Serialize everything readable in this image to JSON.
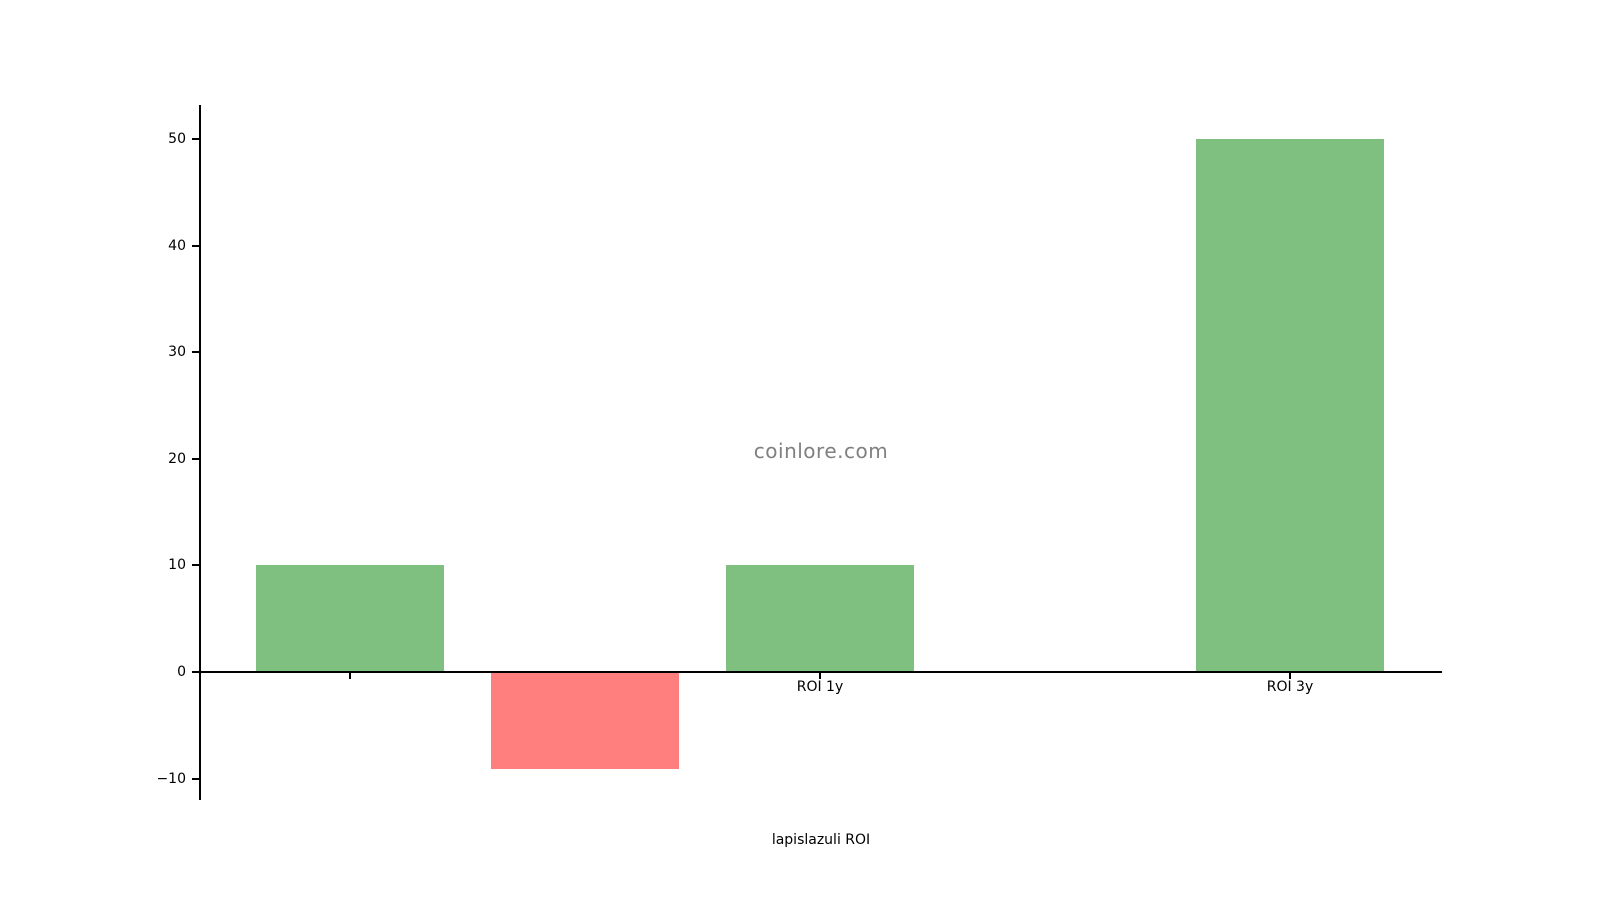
{
  "page": {
    "background_color": "#ffffff"
  },
  "chart_data": {
    "type": "bar",
    "title": "",
    "xlabel": "lapislazuli ROI",
    "ylabel": "",
    "watermark": "coinlore.com",
    "y_ticks": [
      50,
      40,
      30,
      20,
      10,
      0,
      -10
    ],
    "ylim": [
      -12,
      53.2
    ],
    "grid": false,
    "legend": "none",
    "bars": [
      {
        "label": "",
        "value": 10,
        "color": "#7fbf7f",
        "slot": 0
      },
      {
        "label": "",
        "value": -9.1,
        "color": "#ff7f7f",
        "slot": 1
      },
      {
        "label": "ROI 1y",
        "value": 10,
        "color": "#7fbf7f",
        "slot": 2
      },
      {
        "label": "ROI 3y",
        "value": 50,
        "color": "#7fbf7f",
        "slot": 4
      }
    ],
    "colors": {
      "positive_bar": "#7fbf7f",
      "negative_bar": "#ff7f7f",
      "axis": "#000000",
      "watermark_text": "#7f7f7f"
    }
  }
}
